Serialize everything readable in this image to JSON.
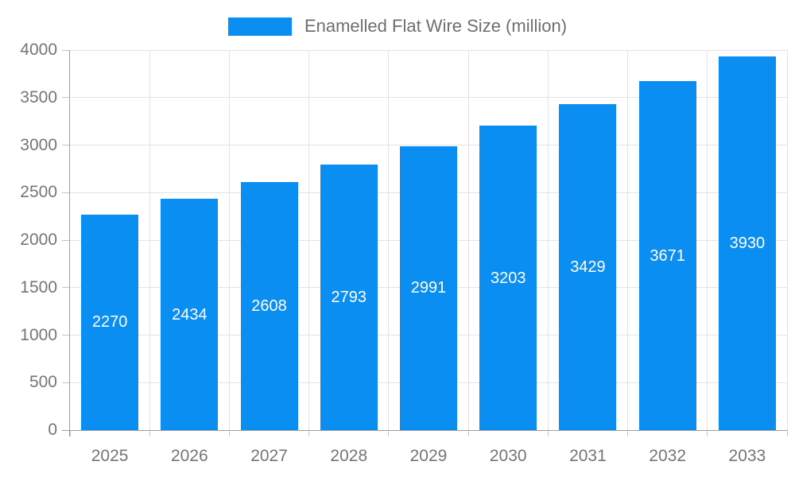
{
  "chart_data": {
    "type": "bar",
    "title": "Enamelled Flat Wire Size (million)",
    "categories": [
      "2025",
      "2026",
      "2027",
      "2028",
      "2029",
      "2030",
      "2031",
      "2032",
      "2033"
    ],
    "values": [
      2270,
      2434,
      2608,
      2793,
      2991,
      3203,
      3429,
      3671,
      3930
    ],
    "xlabel": "",
    "ylabel": "",
    "ylim": [
      0,
      4000
    ],
    "ytick_step": 500,
    "ytick_labels": [
      "0",
      "500",
      "1000",
      "1500",
      "2000",
      "2500",
      "3000",
      "3500",
      "4000"
    ],
    "grid": "on",
    "legend_position": "top-center",
    "value_labels": "inside-center-white",
    "colors": {
      "bar": "#0a8ef2",
      "value_label": "#ffffff",
      "axis_line": "#9e9e9e",
      "gridline": "#e3e3e3",
      "tick": "#c4c4c4",
      "tick_label": "#757575",
      "legend_text": "#6e6e6e",
      "background": "#ffffff"
    }
  }
}
